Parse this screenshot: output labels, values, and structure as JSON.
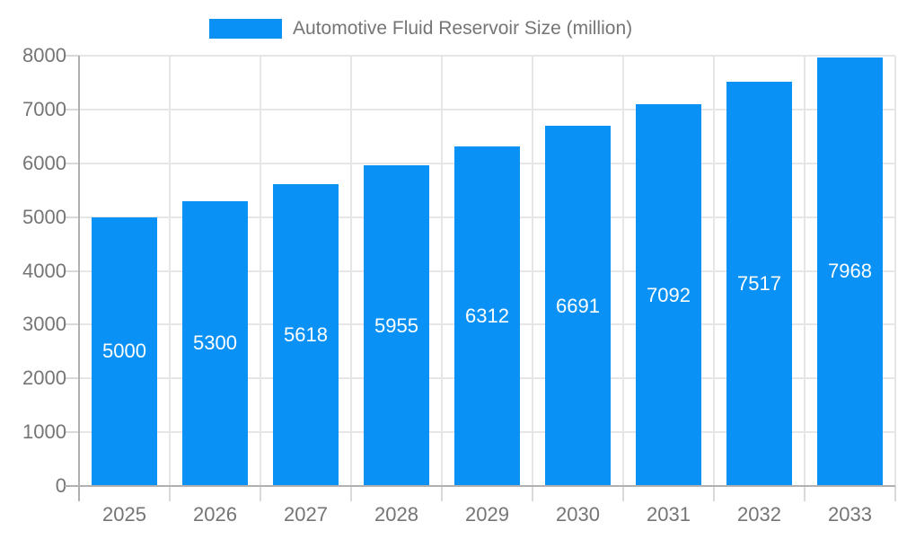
{
  "legend": {
    "label": "Automotive Fluid Reservoir Size (million)"
  },
  "chart_data": {
    "type": "bar",
    "title": "Automotive Fluid Reservoir Size (million)",
    "categories": [
      "2025",
      "2026",
      "2027",
      "2028",
      "2029",
      "2030",
      "2031",
      "2032",
      "2033"
    ],
    "values": [
      5000,
      5300,
      5618,
      5955,
      6312,
      6691,
      7092,
      7517,
      7968
    ],
    "xlabel": "",
    "ylabel": "",
    "ylim": [
      0,
      8000
    ],
    "y_ticks": [
      0,
      1000,
      2000,
      3000,
      4000,
      5000,
      6000,
      7000,
      8000
    ],
    "grid": true,
    "legend_position": "top",
    "bar_labels_inside": true,
    "colors": {
      "bar": "#0a91f5",
      "bar_value_text": "#ffffff",
      "axis_text": "#757575",
      "grid_line": "#e6e6e6",
      "tick_line": "#d9d9d9",
      "axis_line": "#b0b0b0",
      "background": "#ffffff"
    }
  }
}
